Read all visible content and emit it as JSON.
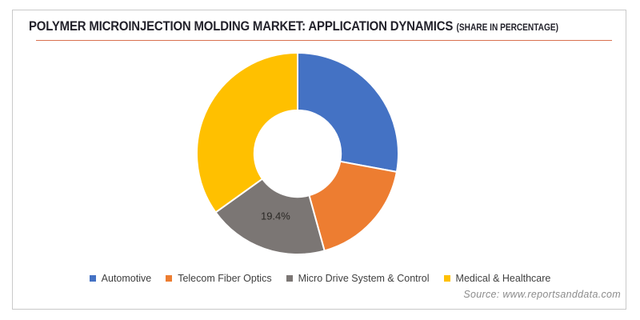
{
  "header": {
    "title": "POLYMER MICROINJECTION MOLDING MARKET: APPLICATION DYNAMICS",
    "title_suffix": "(SHARE IN PERCENTAGE)"
  },
  "source": {
    "text": "Source: www.reportsanddata.com"
  },
  "colors": {
    "title_text": "#23222B",
    "title_underline": "#D9714F",
    "frame_border": "#C9C9C9",
    "legend_text": "#3F3F3F",
    "data_label_text": "#2B2926",
    "source_text": "#8C8C8C",
    "background": "#FFFFFF"
  },
  "chart_data": {
    "type": "pie",
    "variant": "donut",
    "title": "POLYMER MICROINJECTION MOLDING MARKET: APPLICATION DYNAMICS (SHARE IN PERCENTAGE)",
    "unit": "percent",
    "start_angle_deg": 0,
    "direction": "clockwise",
    "inner_radius_ratio": 0.43,
    "legend_position": "bottom",
    "segments": [
      {
        "label": "Automotive",
        "value": 27.9,
        "color": "#4472C4",
        "data_label": ""
      },
      {
        "label": "Telecom Fiber Optics",
        "value": 17.8,
        "color": "#ED7D31",
        "data_label": ""
      },
      {
        "label": "Micro Drive System & Control",
        "value": 19.4,
        "color": "#7B7674",
        "data_label": "19.4%"
      },
      {
        "label": "Medical & Healthcare",
        "value": 34.9,
        "color": "#FFC000",
        "data_label": ""
      }
    ]
  }
}
